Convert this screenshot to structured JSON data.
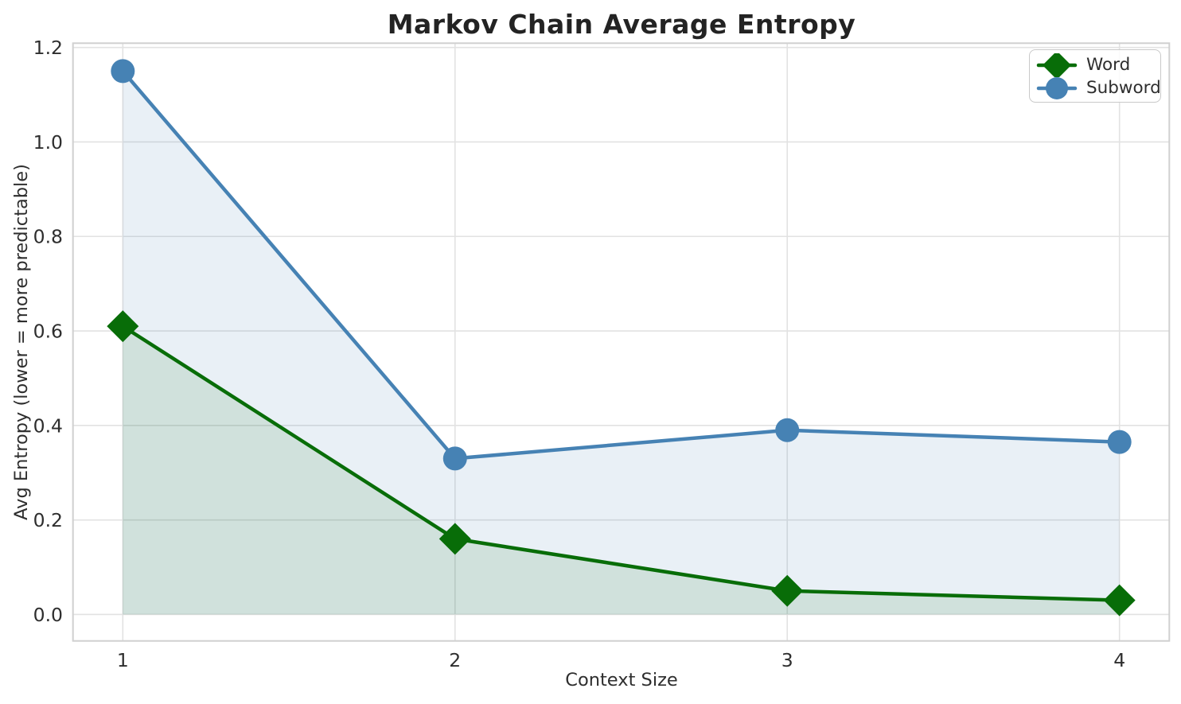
{
  "chart_data": {
    "type": "line",
    "title": "Markov Chain Average Entropy",
    "xlabel": "Context Size",
    "ylabel": "Avg Entropy (lower = more predictable)",
    "x": [
      1,
      2,
      3,
      4
    ],
    "series": [
      {
        "name": "Word",
        "values": [
          0.61,
          0.16,
          0.05,
          0.03
        ],
        "color": "#086d08",
        "fill": "rgba(8,109,8,0.11)",
        "marker": "diamond"
      },
      {
        "name": "Subword",
        "values": [
          1.15,
          0.33,
          0.39,
          0.365
        ],
        "color": "#4682b4",
        "fill": "rgba(70,130,180,0.12)",
        "marker": "circle"
      }
    ],
    "x_tick_values": [
      1,
      2,
      3,
      4
    ],
    "x_tick_labels": [
      "1",
      "2",
      "3",
      "4"
    ],
    "y_tick_values": [
      0.0,
      0.2,
      0.4,
      0.6,
      0.8,
      1.0,
      1.2
    ],
    "y_tick_labels": [
      "0.0",
      "0.2",
      "0.4",
      "0.6",
      "0.8",
      "1.0",
      "1.2"
    ],
    "xlim": [
      0.85,
      4.15
    ],
    "ylim": [
      -0.056,
      1.209
    ],
    "grid": true,
    "grid_color": "#e2e2e2",
    "spine_color": "#d0d0d0",
    "tick_label_color": "#2e2e2e",
    "area_fill_to": 0,
    "legend_position": "upper right"
  }
}
